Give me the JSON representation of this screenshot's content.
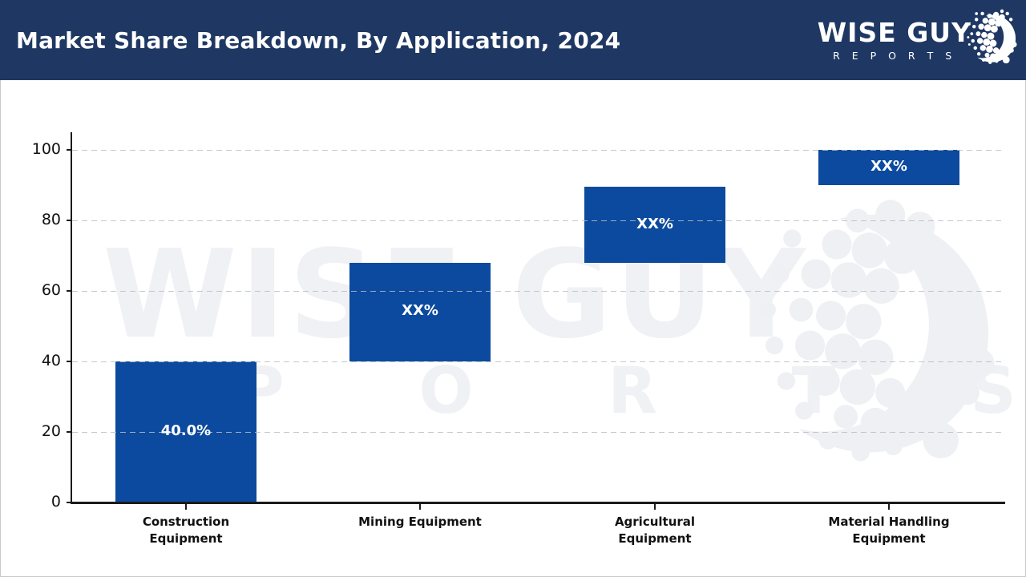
{
  "header": {
    "title": "Market Share Breakdown, By Application, 2024",
    "logo": {
      "line1": "WISE GUY",
      "line2": "R E P O R T S"
    }
  },
  "watermark": {
    "line1": "WISE GUY",
    "line2": "P O R T S"
  },
  "chart_data": {
    "type": "bar",
    "variant": "waterfall",
    "title": "Market Share Breakdown, By Application, 2024",
    "unit": "%",
    "ylim": [
      0,
      105
    ],
    "yticks": [
      0,
      20,
      40,
      60,
      80,
      100
    ],
    "grid": "horizontal-dashed",
    "legend": "none",
    "bar_color": "#0b4a9e",
    "bars": [
      {
        "category": "Construction Equipment",
        "category_lines": [
          "Construction",
          "Equipment"
        ],
        "start": 0,
        "end": 40,
        "label": "40.0%"
      },
      {
        "category": "Mining Equipment",
        "category_lines": [
          "Mining Equipment"
        ],
        "start": 40,
        "end": 68,
        "label": "XX%"
      },
      {
        "category": "Agricultural Equipment",
        "category_lines": [
          "Agricultural",
          "Equipment"
        ],
        "start": 68,
        "end": 89.5,
        "label": "XX%"
      },
      {
        "category": "Material Handling Equipment",
        "category_lines": [
          "Material Handling",
          "Equipment"
        ],
        "start": 90,
        "end": 100,
        "label": "XX%"
      }
    ]
  }
}
